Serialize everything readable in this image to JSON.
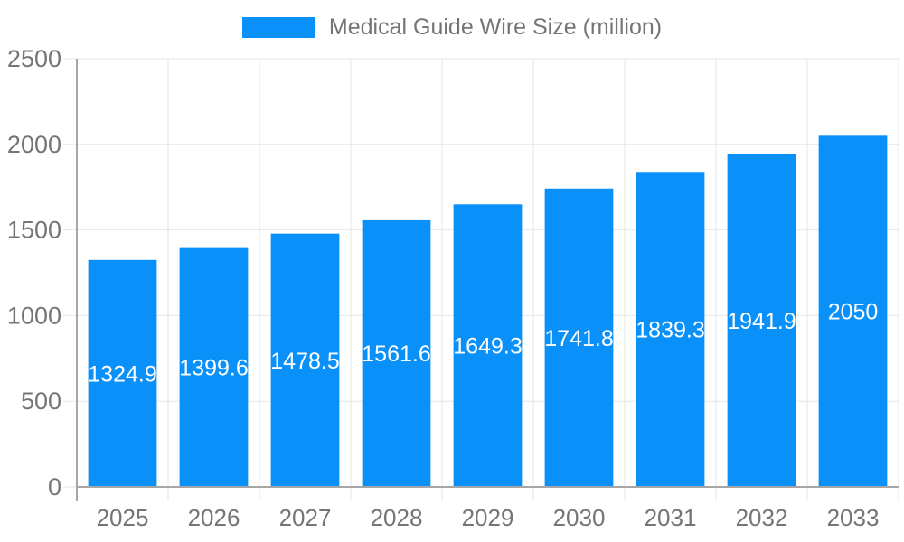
{
  "chart_data": {
    "type": "bar",
    "title": "Medical Guide Wire Size (million)",
    "legend_position": "top",
    "categories": [
      "2025",
      "2026",
      "2027",
      "2028",
      "2029",
      "2030",
      "2031",
      "2032",
      "2033"
    ],
    "series": [
      {
        "name": "Medical Guide Wire Size (million)",
        "values": [
          1324.9,
          1399.6,
          1478.5,
          1561.6,
          1649.3,
          1741.8,
          1839.3,
          1941.9,
          2050
        ]
      }
    ],
    "value_labels": [
      "1324.9",
      "1399.6",
      "1478.5",
      "1561.6",
      "1649.3",
      "1741.8",
      "1839.3",
      "1941.9",
      "2050"
    ],
    "xlabel": "",
    "ylabel": "",
    "ylim": [
      0,
      2500
    ],
    "yticks": [
      0,
      500,
      1000,
      1500,
      2000,
      2500
    ],
    "ytick_labels": [
      "0",
      "500",
      "1000",
      "1500",
      "2000",
      "2500"
    ],
    "grid": true,
    "colors": {
      "bar": "#0a90f9",
      "grid": "#e6e6e6",
      "tick": "#e6e6e6",
      "axis": "#a6a6a6",
      "axis_label": "#757575",
      "legend_text": "#757575",
      "bar_label": "#ffffff",
      "background": "#ffffff"
    }
  }
}
